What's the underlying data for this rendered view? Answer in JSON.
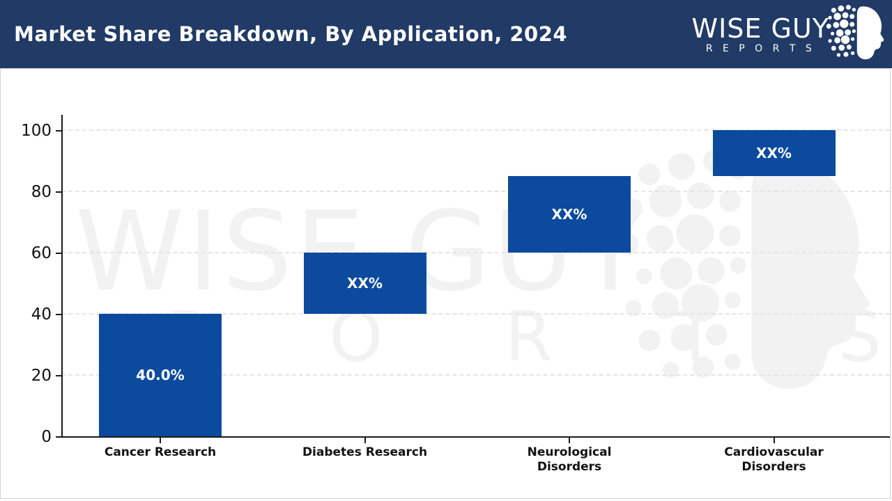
{
  "header": {
    "title": "Market Share Breakdown, By Application, 2024"
  },
  "logo": {
    "wordmark": "WISE GUY",
    "subtext": "R E P O R T S"
  },
  "watermark": {
    "wordmark": "WISE GUY",
    "subtext": "P O R T S"
  },
  "colors": {
    "header_bg": "#213a66",
    "bar": "#0c4a9e",
    "grid": "#e4e4e4",
    "axis": "#1a1a1a",
    "watermark": "#f2f2f2",
    "card_border": "#d3d3d3",
    "tick_text": "#111111",
    "bar_label_text": "#ffffff"
  },
  "chart_data": {
    "type": "bar",
    "variant": "waterfall",
    "title": "Market Share Breakdown, By Application, 2024",
    "categories": [
      "Cancer Research",
      "Diabetes Research",
      "Neurological Disorders",
      "Cardiovascular Disorders"
    ],
    "segments": [
      {
        "category": "Cancer Research",
        "start": 0,
        "end": 40,
        "label": "40.0%"
      },
      {
        "category": "Diabetes Research",
        "start": 40,
        "end": 60,
        "label": "XX%"
      },
      {
        "category": "Neurological Disorders",
        "start": 60,
        "end": 85,
        "label": "XX%"
      },
      {
        "category": "Cardiovascular Disorders",
        "start": 85,
        "end": 100,
        "label": "XX%"
      }
    ],
    "xlabel": "",
    "ylabel": "",
    "ylim": [
      0,
      105
    ],
    "yticks": [
      0,
      20,
      40,
      60,
      80,
      100
    ],
    "grid": "horizontal-dashed",
    "legend": "none",
    "bar_color": "#0c4a9e"
  }
}
